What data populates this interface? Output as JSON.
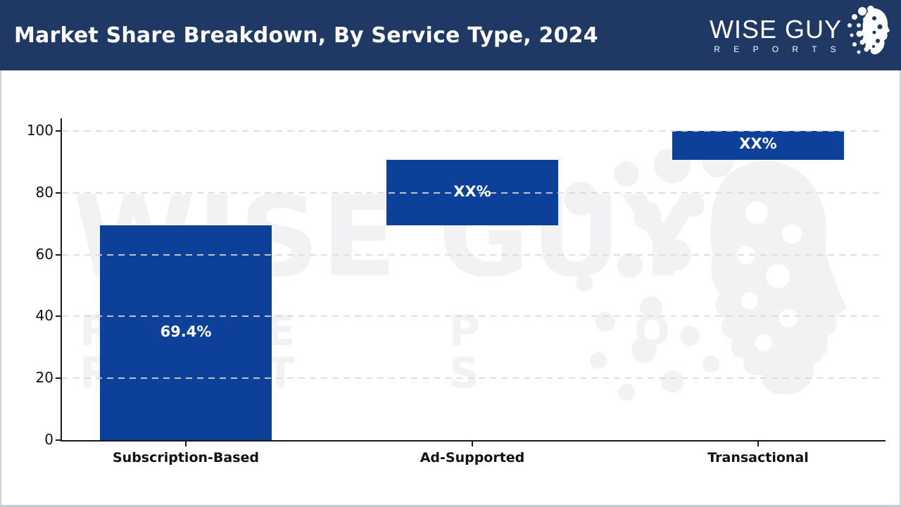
{
  "header": {
    "title": "Market Share Breakdown, By Service Type, 2024",
    "logo": {
      "name": "Wise Guy Reports",
      "line1": "WISE GUY",
      "line2": "R E P O R T S"
    }
  },
  "watermark": {
    "line1": "WISE GUY",
    "line2": "REPORTS"
  },
  "chart_data": {
    "type": "bar",
    "subtype": "waterfall",
    "title": "Market Share Breakdown, By Service Type, 2024",
    "categories": [
      "Subscription-Based",
      "Ad-Supported",
      "Transactional"
    ],
    "series": [
      {
        "name": "Subscription-Based",
        "label": "69.4%",
        "base": 0,
        "top": 69.4
      },
      {
        "name": "Ad-Supported",
        "label": "XX%",
        "base": 69.4,
        "top": 90.7
      },
      {
        "name": "Transactional",
        "label": "XX%",
        "base": 90.7,
        "top": 100
      }
    ],
    "xlabel": "",
    "ylabel": "",
    "ylim": [
      0,
      105
    ],
    "yticks": [
      0,
      20,
      40,
      60,
      80,
      100
    ],
    "grid": "horizontal-dashed",
    "legend": "none",
    "colors": {
      "bar": "#0d4199",
      "bar_label": "#ffffff",
      "grid": "#d9d9d9",
      "axis": "#1a1a1a",
      "tick_text": "#111111",
      "header_bg": "#1f3864",
      "header_text": "#ffffff",
      "watermark": "#f2f2f4"
    }
  }
}
